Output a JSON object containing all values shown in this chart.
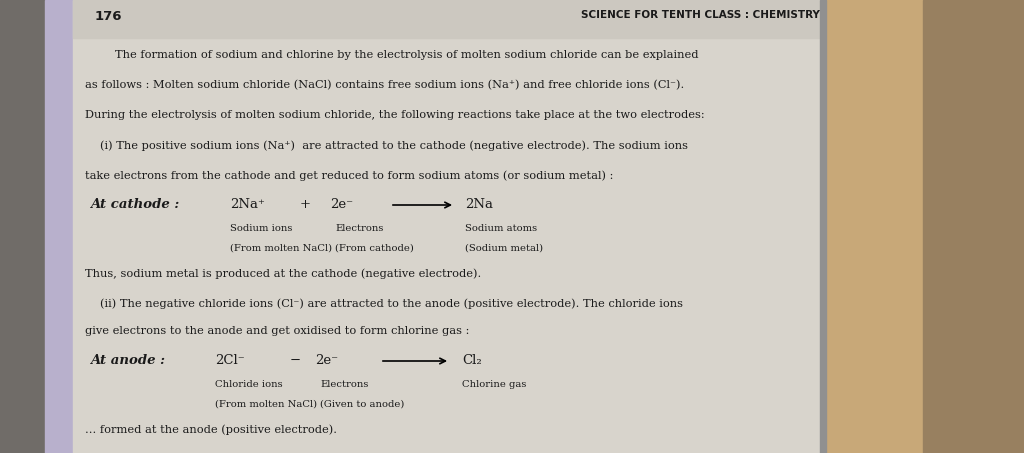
{
  "fig_bg": "#a8a49e",
  "left_strip_color": "#c8c4d8",
  "spine_color": "#b8b0cc",
  "page_bg": "#d8d4cc",
  "right_section_color": "#c8a878",
  "right_book_color": "#b09070",
  "shadow_color": "#888480",
  "header": "SCIENCE FOR TENTH CLASS : CHEMISTRY",
  "page_num": "176",
  "para1": "The formation of sodium and chlorine by the electrolysis of molten sodium chloride can be explained",
  "para2": "as follows : Molten sodium chloride (NaCl) contains free sodium ions (Na⁺) and free chloride ions (Cl⁻).",
  "para3": "During the electrolysis of molten sodium chloride, the following reactions take place at the two electrodes:",
  "para4": "(i) The positive sodium ions (Na⁺)  are attracted to the cathode (negative electrode). The sodium ions",
  "para5": "take electrons from the cathode and get reduced to form sodium atoms (or sodium metal) :",
  "cathode_label": "At cathode :",
  "cathode_eq1": "2Na⁺",
  "cathode_eq_plus": "+",
  "cathode_eq2": "2e⁻",
  "cathode_eq3": "2Na",
  "cathode_s1a": "Sodium ions",
  "cathode_s1b": "(From molten NaCl)",
  "cathode_s2a": "Electrons",
  "cathode_s2b": "(From cathode)",
  "cathode_s3a": "Sodium atoms",
  "cathode_s3b": "(Sodium metal)",
  "mid_line": "Thus, sodium metal is produced at the cathode (negative electrode).",
  "para6": "(ii) The negative chloride ions (Cl⁻) are attracted to the anode (positive electrode). The chloride ions",
  "para7": "give electrons to the anode and get oxidised to form chlorine gas :",
  "anode_label": "At anode :",
  "anode_eq1": "2Cl⁻",
  "anode_eq_minus": "−",
  "anode_eq2": "2e⁻",
  "anode_eq3": "Cl₂",
  "anode_s1a": "Chloride ions",
  "anode_s1b": "(From molten NaCl)",
  "anode_s2a": "Electrons",
  "anode_s2b": "(Given to anode)",
  "anode_s3a": "Chlorine gas",
  "bottom_text": "... formed at the anode (positive electrode).",
  "text_color": "#1a1a1a"
}
